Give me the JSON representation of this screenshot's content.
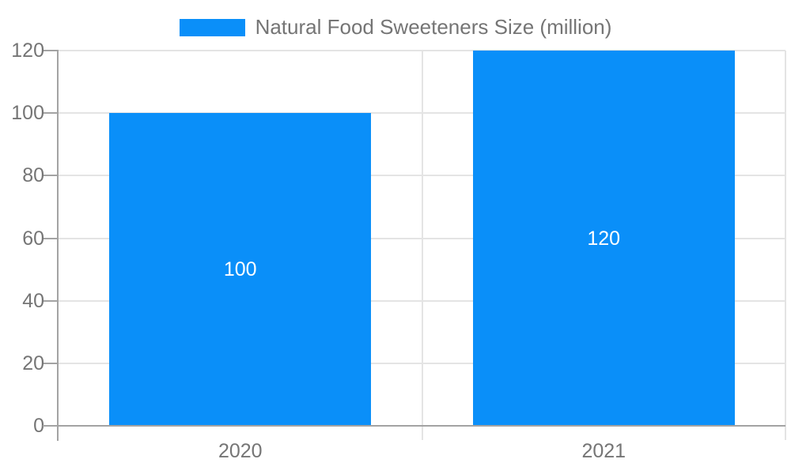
{
  "chart_data": {
    "type": "bar",
    "title": "Natural Food Sweeteners Size (million)",
    "legend": {
      "position": "top",
      "label": "Natural Food Sweeteners Size (million)"
    },
    "categories": [
      "2020",
      "2021"
    ],
    "values": [
      100,
      120
    ],
    "bar_labels": [
      "100",
      "120"
    ],
    "yticks": [
      0,
      20,
      40,
      60,
      80,
      100,
      120
    ],
    "ylim": [
      0,
      120
    ],
    "xlabel": "",
    "ylabel": "",
    "grid": true,
    "colors": {
      "bar": "#0a8ff9",
      "axis": "#a3a3a3",
      "gridline": "#e4e4e4",
      "text": "#757575",
      "bar_label": "#ffffff",
      "background": "#ffffff"
    }
  }
}
